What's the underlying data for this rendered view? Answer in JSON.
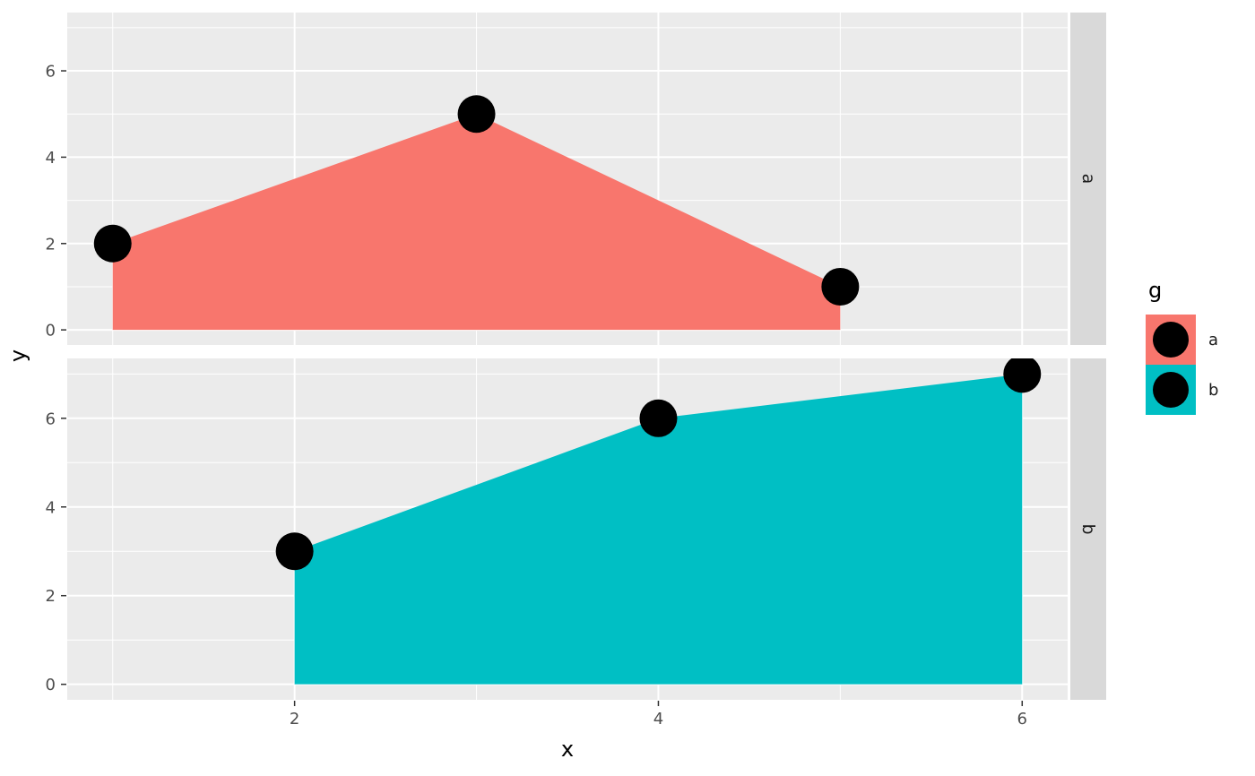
{
  "figure": {
    "background": "#FFFFFF",
    "panel_background": "#EBEBEB",
    "strip_background": "#D9D9D9",
    "grid_color": "#FFFFFF",
    "tick_color": "#333333",
    "tick_label_color": "#4D4D4D",
    "axis_title_color": "#000000",
    "strip_text_color": "#1A1A1A"
  },
  "chart_data": {
    "type": "area",
    "title": "",
    "xlabel": "x",
    "ylabel": "y",
    "x_range": [
      0.75,
      6.25
    ],
    "y_range": [
      -0.35,
      7.35
    ],
    "x_ticks": [
      2,
      4,
      6
    ],
    "y_ticks": [
      0,
      2,
      4,
      6
    ],
    "x_minor": [
      1,
      3,
      5
    ],
    "y_minor": [
      1,
      3,
      5,
      7
    ],
    "grid": true,
    "point_color": "#000000",
    "point_radius": 21,
    "facets": [
      {
        "label": "a",
        "color": "#F8766D",
        "x": [
          1,
          3,
          5
        ],
        "y": [
          2,
          5,
          1
        ]
      },
      {
        "label": "b",
        "color": "#00BFC4",
        "x": [
          2,
          4,
          6
        ],
        "y": [
          3,
          6,
          7
        ]
      }
    ],
    "legend": {
      "title": "g",
      "position": "right",
      "entries": [
        {
          "label": "a",
          "color": "#F8766D"
        },
        {
          "label": "b",
          "color": "#00BFC4"
        }
      ]
    }
  }
}
